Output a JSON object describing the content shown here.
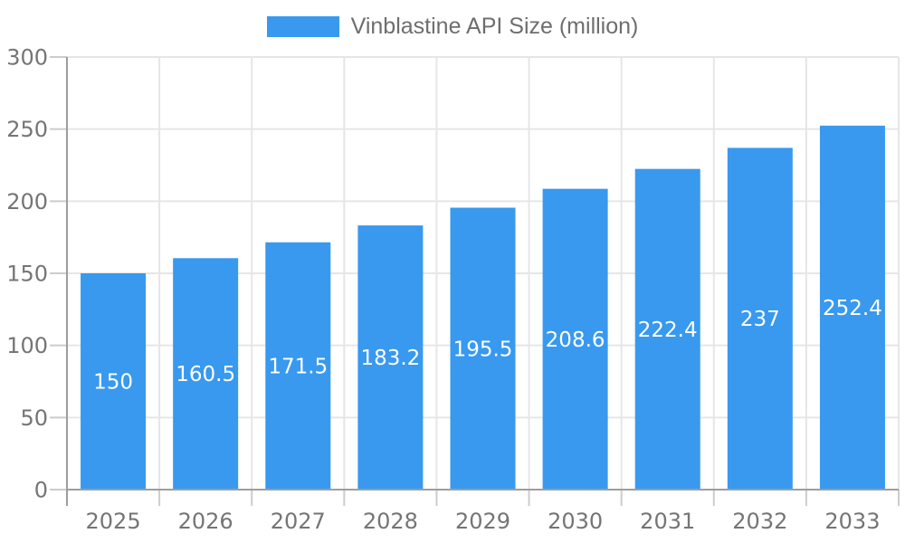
{
  "legend": {
    "label": "Vinblastine API Size (million)"
  },
  "chart_data": {
    "type": "bar",
    "title": "Vinblastine API Size (million)",
    "categories": [
      "2025",
      "2026",
      "2027",
      "2028",
      "2029",
      "2030",
      "2031",
      "2032",
      "2033"
    ],
    "series": [
      {
        "name": "Vinblastine API Size (million)",
        "values": [
          150,
          160.5,
          171.5,
          183.2,
          195.5,
          208.6,
          222.4,
          237,
          252.4
        ],
        "color": "#3899ee"
      }
    ],
    "xlabel": "",
    "ylabel": "",
    "ylim": [
      0,
      300
    ],
    "ytick_step": 50,
    "yticks": [
      0,
      50,
      100,
      150,
      200,
      250,
      300
    ],
    "grid": true,
    "legend_position": "top-center",
    "value_label_style": "inside-center-white"
  },
  "colors": {
    "bar": "#3899ee",
    "axis_line": "#9e9e9e",
    "tick": "#cccccc",
    "gridline": "#e6e6e6",
    "axis_label": "#757575",
    "legend_text": "#6e6e6e",
    "value_label": "#ffffff",
    "background": "#ffffff"
  }
}
